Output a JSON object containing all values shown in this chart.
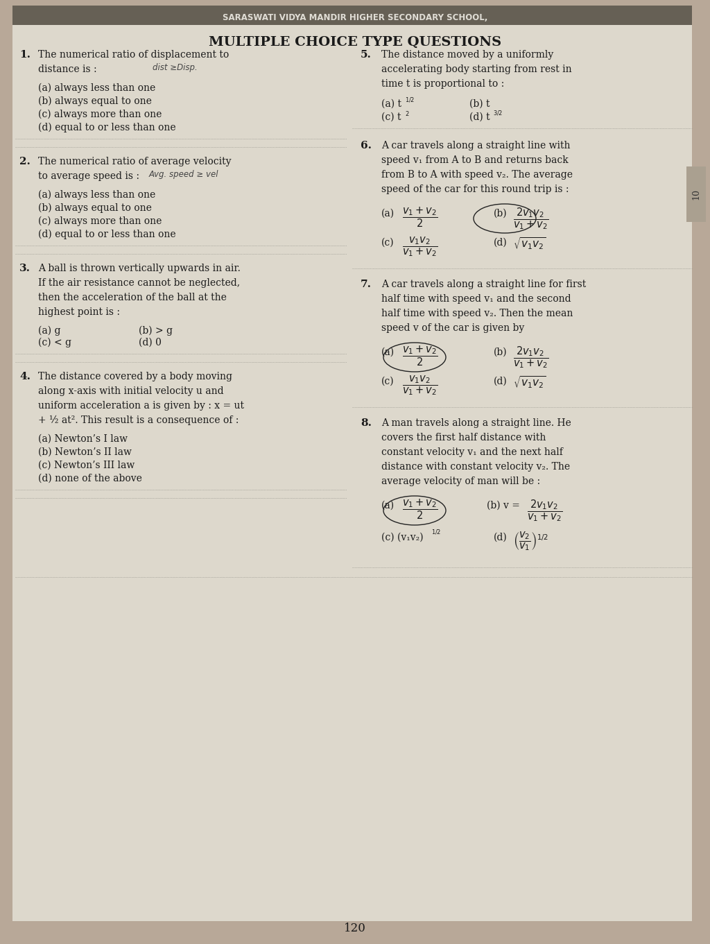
{
  "header": "SARASWATI VIDYA MANDIR HIGHER SECONDARY SCHOOL,",
  "title": "MULTIPLE CHOICE TYPE QUESTIONS",
  "outer_bg": "#b8a898",
  "page_bg": "#ddd8cc",
  "text_color": "#1a1a1a",
  "page_number": "120",
  "header_bg": "#666055",
  "right_tab_color": "#aaa090",
  "dotted_color": "#888880"
}
